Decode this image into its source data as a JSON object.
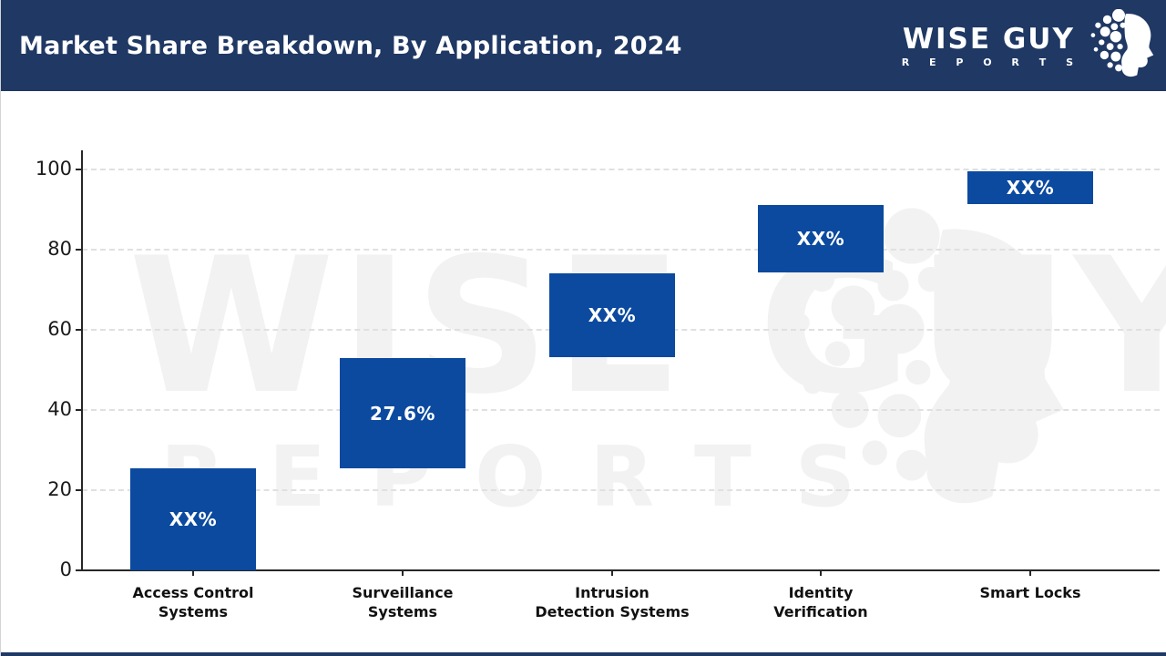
{
  "header": {
    "title": "Market Share Breakdown, By Application, 2024",
    "bg_color": "#1f3864",
    "logo": {
      "line1": "WISE GUY",
      "line2": "R E P O R T S"
    }
  },
  "watermark": {
    "line1": "WISE GUY",
    "line2": "REPORTS"
  },
  "chart_data": {
    "type": "bar",
    "subtype": "waterfall-segments",
    "title": "Market Share Breakdown, By Application, 2024",
    "xlabel": "",
    "ylabel": "",
    "ylim": [
      0,
      105
    ],
    "y_ticks": [
      0,
      20,
      40,
      60,
      80,
      100
    ],
    "grid": "horizontal-dashed",
    "legend_position": "none",
    "bar_color": "#0b4a9f",
    "bar_label_color": "#ffffff",
    "categories": [
      {
        "label": "Access Control Systems",
        "lines": [
          "Access Control",
          "Systems"
        ]
      },
      {
        "label": "Surveillance Systems",
        "lines": [
          "Surveillance",
          "Systems"
        ]
      },
      {
        "label": "Intrusion Detection Systems",
        "lines": [
          "Intrusion",
          "Detection Systems"
        ]
      },
      {
        "label": "Identity Verification",
        "lines": [
          "Identity",
          "Verification"
        ]
      },
      {
        "label": "Smart Locks",
        "lines": [
          "Smart Locks"
        ]
      }
    ],
    "segments": [
      {
        "category": "Access Control Systems",
        "start": 0,
        "end": 25.5,
        "value": 25.5,
        "value_label": "XX%"
      },
      {
        "category": "Surveillance Systems",
        "start": 25.4,
        "end": 53.0,
        "value": 27.6,
        "value_label": "27.6%"
      },
      {
        "category": "Intrusion Detection Systems",
        "start": 53.2,
        "end": 74.1,
        "value": 20.9,
        "value_label": "XX%"
      },
      {
        "category": "Identity Verification",
        "start": 74.3,
        "end": 91.1,
        "value": 16.8,
        "value_label": "XX%"
      },
      {
        "category": "Smart Locks",
        "start": 91.4,
        "end": 99.6,
        "value": 8.2,
        "value_label": "XX%"
      }
    ]
  }
}
